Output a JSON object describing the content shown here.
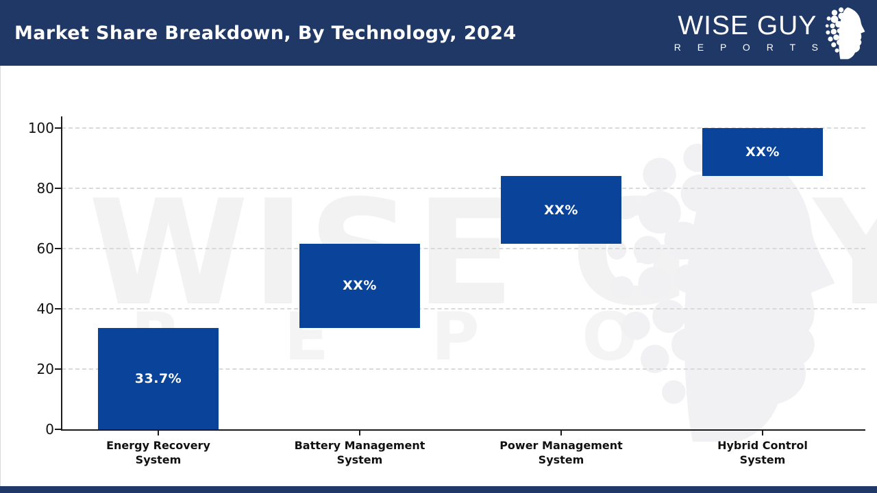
{
  "header": {
    "title": "Market Share Breakdown, By Technology, 2024",
    "logo": {
      "name": "WISE GUY",
      "sub": "R E P O R T S"
    }
  },
  "watermark": {
    "line1": "WISE GUY",
    "line2": "R E P O R T S"
  },
  "colors": {
    "header_bg": "#1f3865",
    "footer_bg": "#1f3865",
    "bar": "#09439a",
    "bar_label": "#ffffff",
    "grid": "#d9d9d9",
    "axis": "#1a1a1a",
    "watermark": "#f1f1f3"
  },
  "chart_data": {
    "type": "bar",
    "subtype": "waterfall",
    "title": "Market Share Breakdown, By Technology, 2024",
    "categories": [
      "Energy Recovery System",
      "Battery Management System",
      "Power Management System",
      "Hybrid Control System"
    ],
    "category_lines": [
      [
        "Energy Recovery",
        "System"
      ],
      [
        "Battery Management",
        "System"
      ],
      [
        "Power Management",
        "System"
      ],
      [
        "Hybrid Control",
        "System"
      ]
    ],
    "segments": [
      {
        "category": "Energy Recovery System",
        "start": 0,
        "end": 33.7,
        "label": "33.7%"
      },
      {
        "category": "Battery Management System",
        "start": 33.7,
        "end": 61.6,
        "label": "XX%"
      },
      {
        "category": "Power Management System",
        "start": 61.6,
        "end": 84.0,
        "label": "XX%"
      },
      {
        "category": "Hybrid Control System",
        "start": 84.0,
        "end": 100.0,
        "label": "XX%"
      }
    ],
    "yticks": [
      0,
      20,
      40,
      60,
      80,
      100
    ],
    "ylim": [
      0,
      104
    ],
    "xlabel": "",
    "ylabel": "",
    "grid": "horizontal-dashed",
    "legend": "none"
  }
}
